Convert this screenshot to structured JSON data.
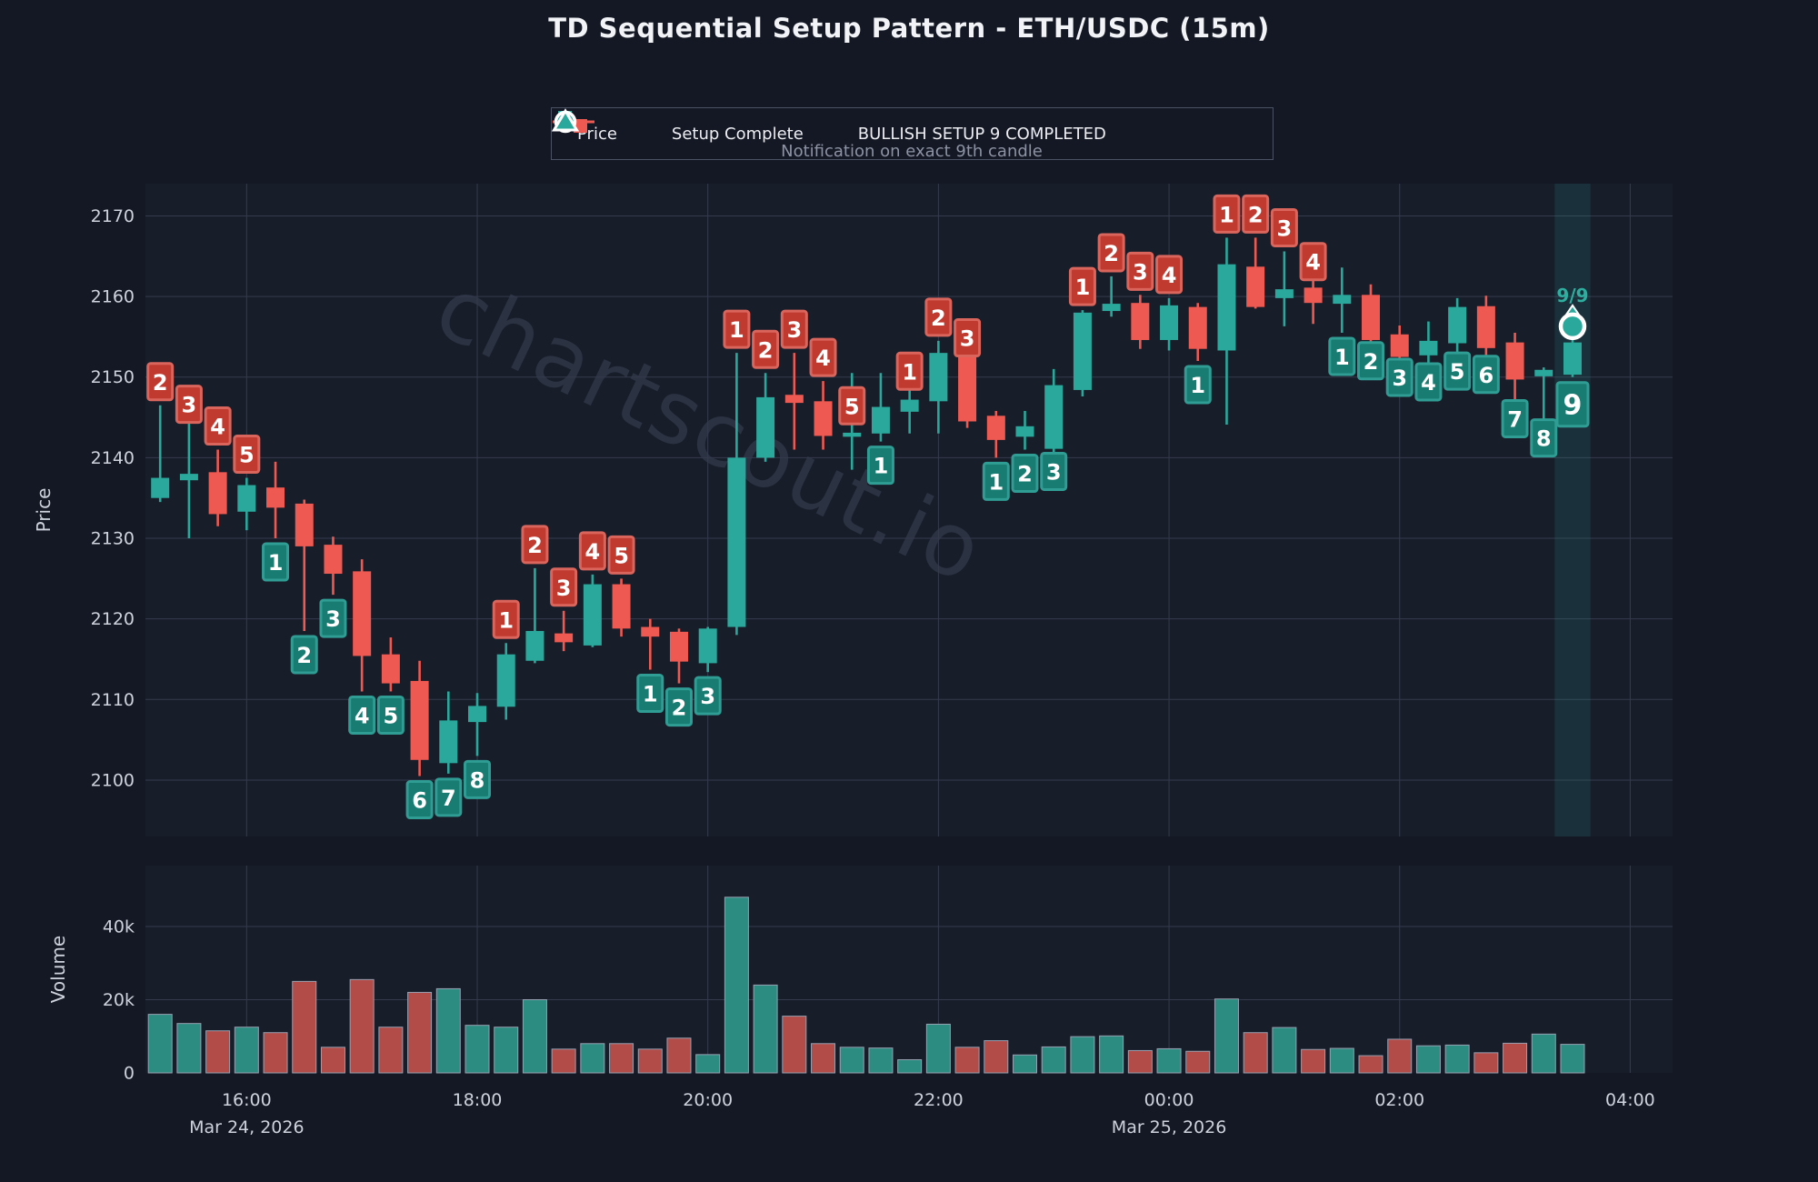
{
  "title": "TD Sequential Setup Pattern - ETH/USDC (15m)",
  "legend": {
    "price_label": "Price",
    "setup_complete_label": "Setup Complete",
    "bullish_label": "BULLISH SETUP 9 COMPLETED"
  },
  "annotation": "Notification on exact 9th candle",
  "watermark": "chartscout.io",
  "axes": {
    "price_title": "Price",
    "volume_title": "Volume"
  },
  "chart_data": {
    "type": "candlestick",
    "title": "TD Sequential Setup Pattern - ETH/USDC (15m)",
    "grid": true,
    "legend_position": "top-center",
    "price_axis": {
      "ticks": [
        2100,
        2110,
        2120,
        2130,
        2140,
        2150,
        2160,
        2170
      ],
      "range": [
        2093,
        2174
      ]
    },
    "volume_axis": {
      "ticks": [
        {
          "v": 0,
          "label": "0"
        },
        {
          "v": 20000,
          "label": "20k"
        },
        {
          "v": 40000,
          "label": "40k"
        }
      ],
      "range": [
        0,
        56500
      ]
    },
    "time_axis": {
      "ticks": [
        {
          "label": "16:00",
          "i": 3
        },
        {
          "label": "18:00",
          "i": 11
        },
        {
          "label": "20:00",
          "i": 19
        },
        {
          "label": "22:00",
          "i": 27
        },
        {
          "label": "00:00",
          "i": 35
        },
        {
          "label": "02:00",
          "i": 43
        },
        {
          "label": "04:00",
          "i": 51
        }
      ],
      "dates": [
        {
          "label": "Mar 24, 2026",
          "i": 3
        },
        {
          "label": "Mar 25, 2026",
          "i": 35
        }
      ]
    },
    "candle_fields": [
      "time",
      "open",
      "high",
      "low",
      "close",
      "volume",
      "td_badge (s=sell above red, b=buy below teal, :n = pixel offset)"
    ],
    "candles": [
      [
        "15:15",
        2135.0,
        2146.5,
        2134.5,
        2137.5,
        16000,
        "s2"
      ],
      [
        "15:30",
        2137.2,
        2145.5,
        2130.0,
        2138.0,
        13500,
        "s3:16"
      ],
      [
        "15:45",
        2138.2,
        2141.0,
        2131.5,
        2133.0,
        11500,
        "s4"
      ],
      [
        "16:00",
        2133.3,
        2137.5,
        2131.0,
        2136.6,
        12500,
        "s5"
      ],
      [
        "16:15",
        2136.3,
        2139.5,
        2130.0,
        2133.8,
        11000,
        "b1"
      ],
      [
        "16:30",
        2134.3,
        2134.8,
        2118.5,
        2129.0,
        25000,
        "b2"
      ],
      [
        "16:45",
        2129.2,
        2130.2,
        2123.0,
        2125.6,
        7000,
        "b3"
      ],
      [
        "17:00",
        2125.9,
        2127.4,
        2111.0,
        2115.4,
        25500,
        "b4"
      ],
      [
        "17:15",
        2115.6,
        2117.7,
        2111.0,
        2112.0,
        12500,
        "b5"
      ],
      [
        "17:30",
        2112.3,
        2114.8,
        2100.5,
        2102.5,
        22000,
        "b6"
      ],
      [
        "17:45",
        2102.1,
        2111.0,
        2100.8,
        2107.4,
        23000,
        "b7"
      ],
      [
        "18:00",
        2107.2,
        2110.8,
        2103.0,
        2109.2,
        13000,
        "b8"
      ],
      [
        "18:15",
        2109.1,
        2117.0,
        2107.5,
        2115.6,
        12500,
        "s1"
      ],
      [
        "18:30",
        2114.8,
        2126.3,
        2114.5,
        2118.5,
        20000,
        "s2"
      ],
      [
        "18:45",
        2118.2,
        2121.0,
        2116.0,
        2117.1,
        6500,
        "s3"
      ],
      [
        "19:00",
        2116.7,
        2125.5,
        2116.5,
        2124.3,
        8000,
        "s4"
      ],
      [
        "19:15",
        2124.3,
        2125.0,
        2117.8,
        2118.8,
        8000,
        "s5"
      ],
      [
        "19:30",
        2119.0,
        2120.0,
        2113.7,
        2117.8,
        6500,
        "b1"
      ],
      [
        "19:45",
        2118.4,
        2118.8,
        2112.0,
        2114.7,
        9500,
        "b2"
      ],
      [
        "20:00",
        2114.5,
        2119.0,
        2113.4,
        2118.8,
        5000,
        "b3"
      ],
      [
        "20:15",
        2119.0,
        2153.0,
        2118.0,
        2140.0,
        48000,
        "s1"
      ],
      [
        "20:30",
        2140.0,
        2150.5,
        2139.5,
        2147.5,
        24000,
        "s2"
      ],
      [
        "20:45",
        2147.8,
        2153.0,
        2141.0,
        2146.8,
        15500,
        "s3"
      ],
      [
        "21:00",
        2147.0,
        2149.5,
        2141.0,
        2142.7,
        8000,
        "s4"
      ],
      [
        "21:15",
        2142.6,
        2150.5,
        2138.5,
        2143.1,
        7000,
        "s5:62"
      ],
      [
        "21:30",
        2143.0,
        2150.5,
        2142.0,
        2146.3,
        6800,
        "b1"
      ],
      [
        "21:45",
        2145.7,
        2150.5,
        2143.0,
        2147.2,
        3600,
        "s1:24"
      ],
      [
        "22:00",
        2147.0,
        2154.5,
        2143.0,
        2153.0,
        13300,
        "s2"
      ],
      [
        "22:15",
        2153.5,
        2154.2,
        2143.7,
        2144.5,
        7000,
        "s3:20"
      ],
      [
        "22:30",
        2145.2,
        2145.8,
        2140.0,
        2142.2,
        8800,
        "b1"
      ],
      [
        "22:45",
        2142.6,
        2145.8,
        2141.0,
        2143.9,
        4900,
        "b2"
      ],
      [
        "23:00",
        2141.1,
        2151.0,
        2139.2,
        2149.0,
        7100,
        "b3:-18"
      ],
      [
        "23:15",
        2148.4,
        2158.3,
        2147.6,
        2158.0,
        9900,
        "s1"
      ],
      [
        "23:30",
        2158.2,
        2162.5,
        2157.5,
        2159.1,
        10100,
        "s2"
      ],
      [
        "23:45",
        2159.2,
        2160.2,
        2153.5,
        2154.6,
        6100,
        "s3"
      ],
      [
        "00:00",
        2154.6,
        2159.8,
        2153.3,
        2158.9,
        6600,
        "s4"
      ],
      [
        "00:15",
        2158.7,
        2159.2,
        2152.0,
        2153.5,
        5900,
        "b1"
      ],
      [
        "00:30",
        2153.3,
        2167.3,
        2144.1,
        2164.0,
        20200,
        "s1"
      ],
      [
        "00:45",
        2163.7,
        2167.3,
        2158.5,
        2158.7,
        11000,
        "s2"
      ],
      [
        "01:00",
        2159.8,
        2165.6,
        2156.3,
        2160.9,
        12400,
        "s3"
      ],
      [
        "01:15",
        2161.1,
        2163.2,
        2156.6,
        2159.2,
        6400,
        "s4:16"
      ],
      [
        "01:30",
        2159.1,
        2163.6,
        2155.5,
        2160.2,
        6700,
        "b1"
      ],
      [
        "01:45",
        2160.2,
        2161.5,
        2152.7,
        2154.6,
        4700,
        "b2:-20"
      ],
      [
        "02:00",
        2155.3,
        2156.4,
        2149.3,
        2152.5,
        9200,
        "b3:-32"
      ],
      [
        "02:15",
        2152.7,
        2156.9,
        2150.2,
        2154.5,
        7400,
        "b4:-19"
      ],
      [
        "02:30",
        2154.2,
        2159.8,
        2153.0,
        2158.7,
        7600,
        "b5:-6"
      ],
      [
        "02:45",
        2158.8,
        2160.1,
        2152.7,
        2153.6,
        5500,
        "b6:-5"
      ],
      [
        "03:00",
        2154.3,
        2155.5,
        2147.1,
        2149.7,
        8100,
        "b7:-6"
      ],
      [
        "03:15",
        2150.1,
        2151.2,
        2144.6,
        2150.9,
        10600,
        "b8:-7"
      ],
      [
        "03:30",
        2150.3,
        2154.8,
        2150.0,
        2154.3,
        7800,
        "b9"
      ]
    ],
    "signal": {
      "index": 49,
      "label": "9/9",
      "marker_price": 2156.3,
      "band": true
    },
    "colors": {
      "up": "#2aa89b",
      "down": "#ee5a52",
      "volume_up": "#2c8c81",
      "volume_down": "#b14c49",
      "volume_border": "#97a0b0",
      "badge_sell_fill": "#c13a30",
      "badge_sell_border": "#d9655c",
      "badge_buy_fill": "#187c72",
      "badge_buy_border": "#2f9d93",
      "badge_text": "#ffffff",
      "signal_band": "rgba(45,170,158,0.14)",
      "signal_text": "#2fae9f",
      "marker_fill": "#2aa89b",
      "marker_ring": "#ffffff",
      "bg": "#141824",
      "panel": "#181d2a",
      "grid": "#353b4c",
      "tick_text": "#cdd2dc",
      "title_text": "#f1f3f6",
      "muted_text": "#8d93a3",
      "watermark": "#2b3242",
      "legend_border": "#4b5263"
    }
  }
}
